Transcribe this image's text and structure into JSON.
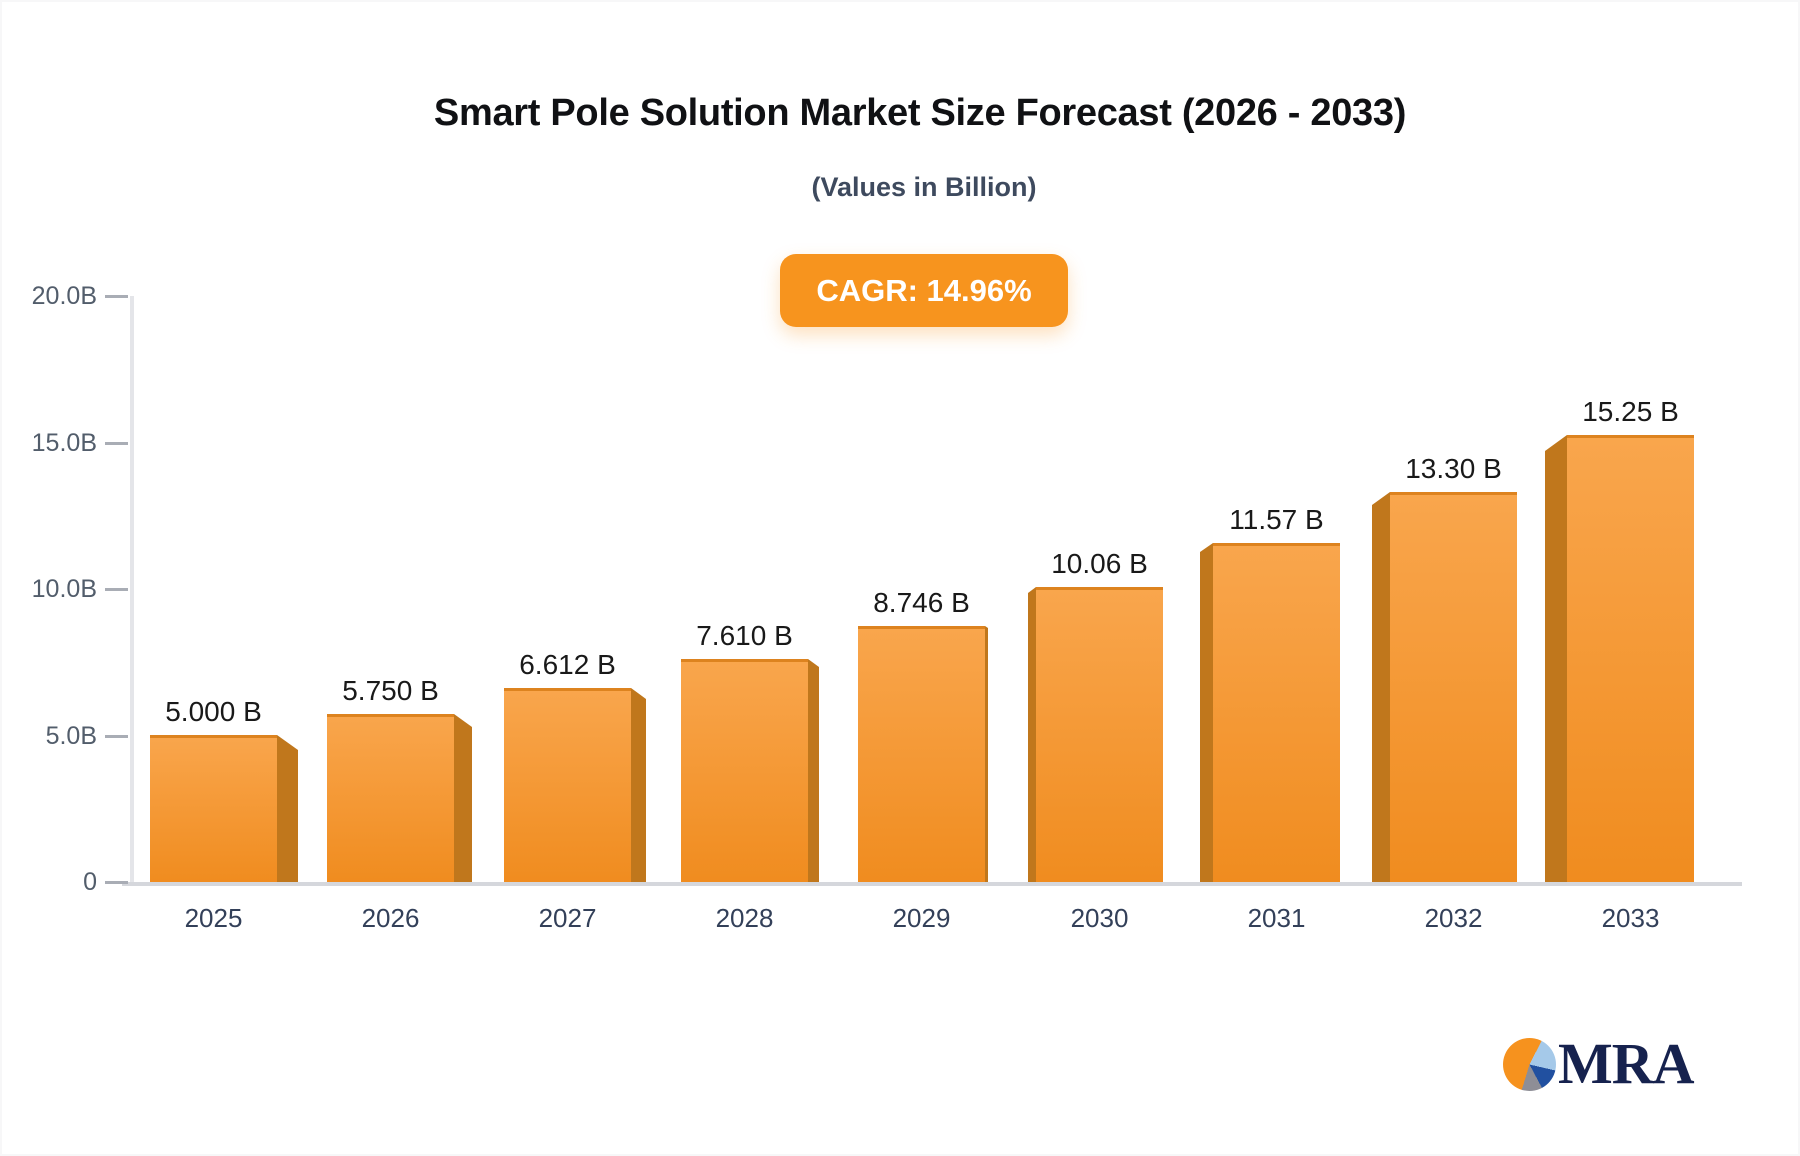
{
  "header": {
    "title": "Smart Pole Solution Market Size Forecast (2026 - 2033)",
    "subtitle": "(Values in Billion)",
    "cagr_badge": "CAGR: 14.96%"
  },
  "chart_data": {
    "type": "bar",
    "title": "Smart Pole Solution Market Size Forecast (2026 - 2033)",
    "subtitle": "(Values in Billion)",
    "annotation": "CAGR: 14.96%",
    "unit": "Billion",
    "categories": [
      "2025",
      "2026",
      "2027",
      "2028",
      "2029",
      "2030",
      "2031",
      "2032",
      "2033"
    ],
    "values": [
      5.0,
      5.75,
      6.612,
      7.61,
      8.746,
      10.06,
      11.57,
      13.3,
      15.25
    ],
    "value_labels": [
      "5.000 B",
      "5.750 B",
      "6.612 B",
      "7.610 B",
      "8.746 B",
      "10.06 B",
      "11.57 B",
      "13.30 B",
      "15.25 B"
    ],
    "ylim": [
      0,
      20
    ],
    "yticks": {
      "labels": [
        "20.0B",
        "15.0B",
        "10.0B",
        "5.0B",
        "0"
      ],
      "values": [
        20,
        15,
        10,
        5,
        0
      ]
    },
    "grid": false,
    "legend": false,
    "bar_style": "3d-orange"
  },
  "colors": {
    "badge_bg": "#F7941E",
    "bar_face_top": "#F9A64D",
    "bar_face_bottom": "#F08C1F",
    "bar_face_edge": "#DD831F",
    "bar_side": "#C0771C",
    "axis_line": "#E4E5E9",
    "baseline": "#D5D7DC",
    "tick_dash": "#A9ADB5",
    "y_label": "#525d6b",
    "x_label": "#334059",
    "value_label": "#191919",
    "logo_navy": "#16224e",
    "pie_orange": "#F6921E",
    "pie_light_blue": "#A5C9E9",
    "pie_blue": "#2150A0",
    "pie_gray": "#8E8E96"
  },
  "logo": {
    "text": "MRA"
  }
}
